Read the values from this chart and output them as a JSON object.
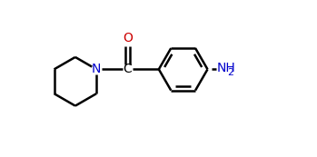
{
  "background_color": "#ffffff",
  "line_color": "#000000",
  "n_color": "#0000cc",
  "o_color": "#cc0000",
  "line_width": 1.8,
  "font_size": 10,
  "fig_width": 3.49,
  "fig_height": 1.73,
  "xlim": [
    0.0,
    9.5
  ],
  "ylim": [
    -0.2,
    5.0
  ]
}
